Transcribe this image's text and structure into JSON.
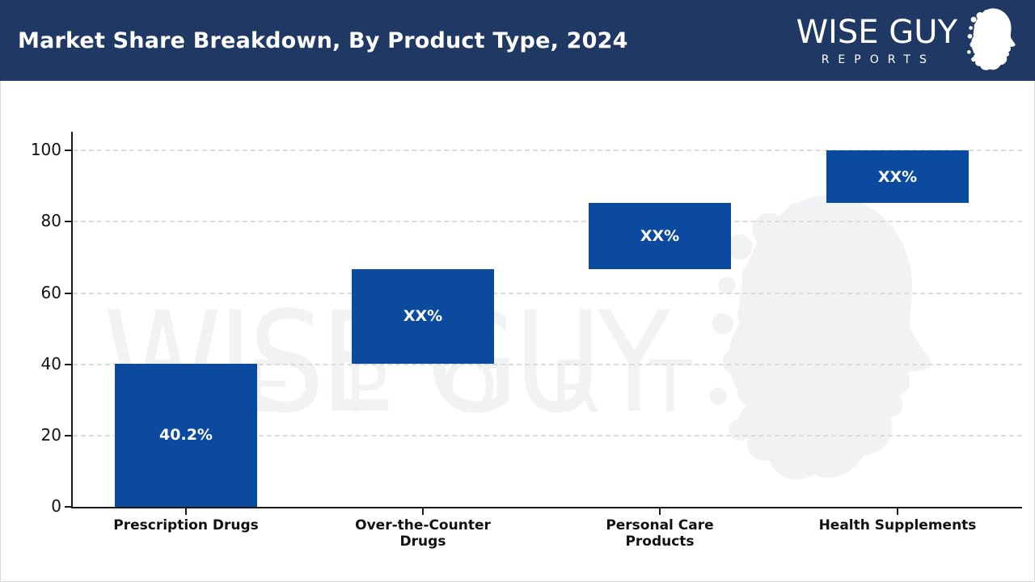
{
  "page": {
    "header": {
      "title": "Market Share Breakdown, By Product Type, 2024",
      "logo_primary": "WISE GUY",
      "logo_secondary": "REPORTS"
    },
    "watermark": {
      "primary": "WISE GUY",
      "secondary": "REPORTS"
    }
  },
  "colors": {
    "header_bg": "#203864",
    "title_text": "#ffffff",
    "bar_fill": "#0b4a9f",
    "bar_label_text": "#ffffff",
    "axis": "#1a1a1a",
    "tick_label_text": "#111111",
    "gridline": "#dcdcdc",
    "watermark": "#f1f2f4",
    "page_bg": "#ffffff"
  },
  "chart_data": {
    "type": "bar",
    "subtype": "waterfall",
    "title": "Market Share Breakdown, By Product Type, 2024",
    "xlabel": "",
    "ylabel": "",
    "categories": [
      "Prescription Drugs",
      "Over-the-Counter Drugs",
      "Personal Care Products",
      "Health Supplements"
    ],
    "category_lines": [
      [
        "Prescription Drugs"
      ],
      [
        "Over-the-Counter",
        "Drugs"
      ],
      [
        "Personal Care",
        "Products"
      ],
      [
        "Health Supplements"
      ]
    ],
    "segments": [
      {
        "category": "Prescription Drugs",
        "start": 0,
        "end": 40.2,
        "label": "40.2%"
      },
      {
        "category": "Over-the-Counter Drugs",
        "start": 40.2,
        "end": 66.8,
        "label": "XX%"
      },
      {
        "category": "Personal Care Products",
        "start": 66.8,
        "end": 85.2,
        "label": "XX%"
      },
      {
        "category": "Health Supplements",
        "start": 85.2,
        "end": 100,
        "label": "XX%"
      }
    ],
    "ylim": [
      0,
      105
    ],
    "yticks": [
      0,
      20,
      40,
      60,
      80,
      100
    ],
    "grid": "horizontal-dashed",
    "legend": "none"
  }
}
